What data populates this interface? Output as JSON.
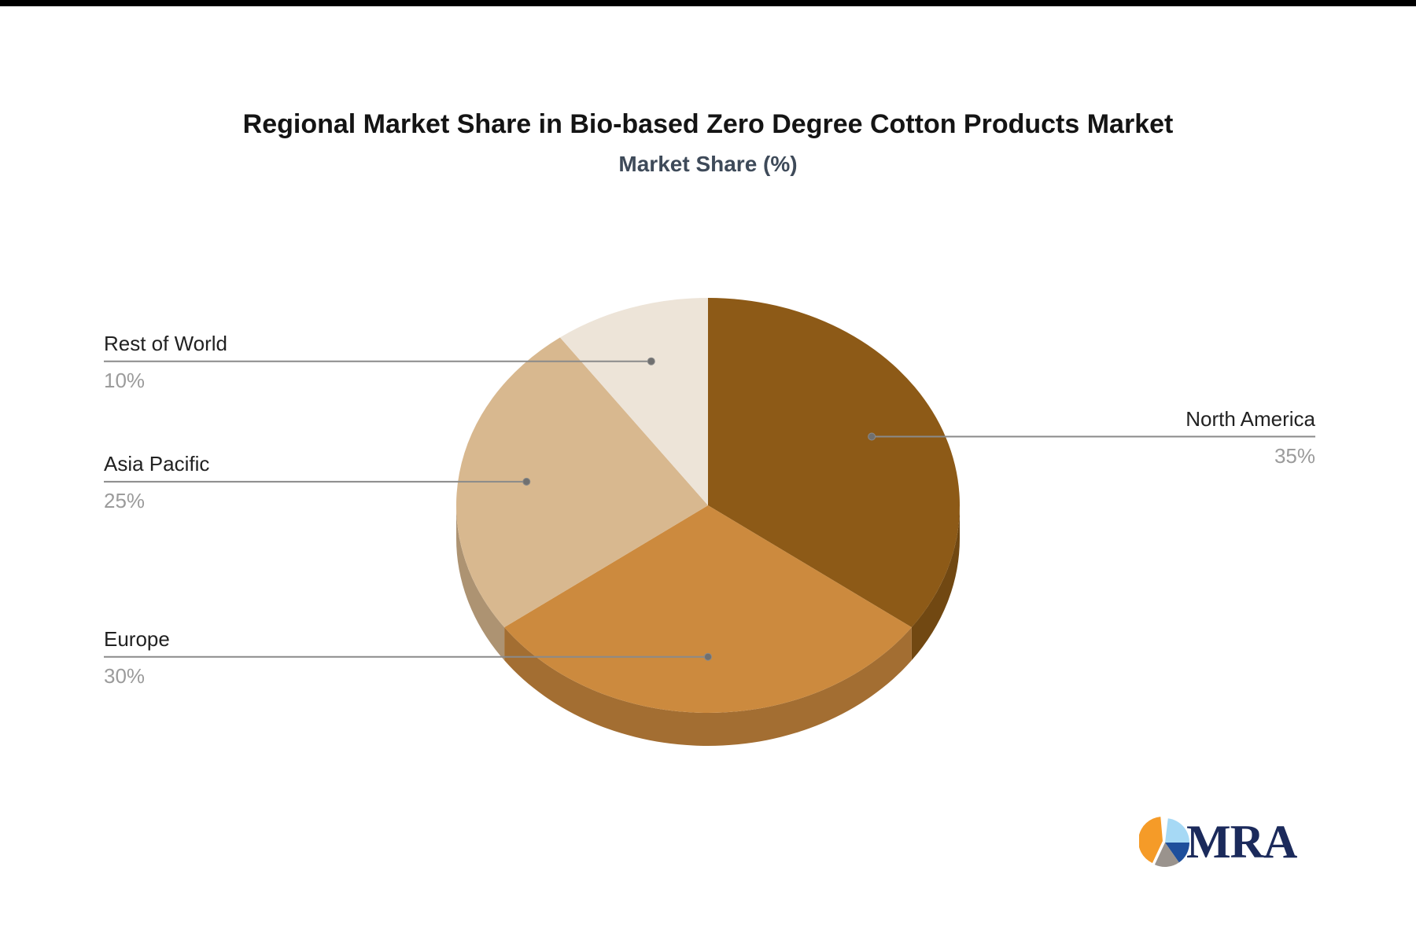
{
  "title": "Regional Market Share in Bio-based Zero Degree Cotton Products Market",
  "subtitle": "Market Share (%)",
  "chart_data": {
    "type": "pie",
    "style": "3d",
    "title": "Regional Market Share in Bio-based Zero Degree Cotton Products Market",
    "subtitle": "Market Share (%)",
    "value_suffix": "%",
    "start_angle_deg": 0,
    "direction": "clockwise",
    "legend_position": "none",
    "labels_style": "leader-lines",
    "segments": [
      {
        "label": "North America",
        "value": 35,
        "display": "35%",
        "color": "#8D5A17",
        "label_side": "right"
      },
      {
        "label": "Europe",
        "value": 30,
        "display": "30%",
        "color": "#CC8A3E",
        "label_side": "left"
      },
      {
        "label": "Asia Pacific",
        "value": 25,
        "display": "25%",
        "color": "#D8B88F",
        "label_side": "left"
      },
      {
        "label": "Rest of World",
        "value": 10,
        "display": "10%",
        "color": "#EDE4D8",
        "label_side": "left"
      }
    ]
  },
  "colors": {
    "leader_line": "#8A8A8A",
    "leader_dot": "#707070",
    "label_text": "#212121",
    "pct_text": "#9B9B9B",
    "title_text": "#141414",
    "subtitle_text": "#3E4A59"
  },
  "logo": {
    "text": "MRA",
    "text_color": "#1B2A5B",
    "icon_slices": [
      {
        "name": "orange-slice",
        "color": "#F59B28",
        "from": 205,
        "to": 355,
        "explode": true
      },
      {
        "name": "light-blue-slice",
        "color": "#A6D9F5",
        "from": 7,
        "to": 90,
        "explode": false
      },
      {
        "name": "dark-blue-slice",
        "color": "#1E4F9C",
        "from": 90,
        "to": 145,
        "explode": false
      },
      {
        "name": "gray-slice",
        "color": "#9A938D",
        "from": 145,
        "to": 205,
        "explode": false
      }
    ]
  }
}
